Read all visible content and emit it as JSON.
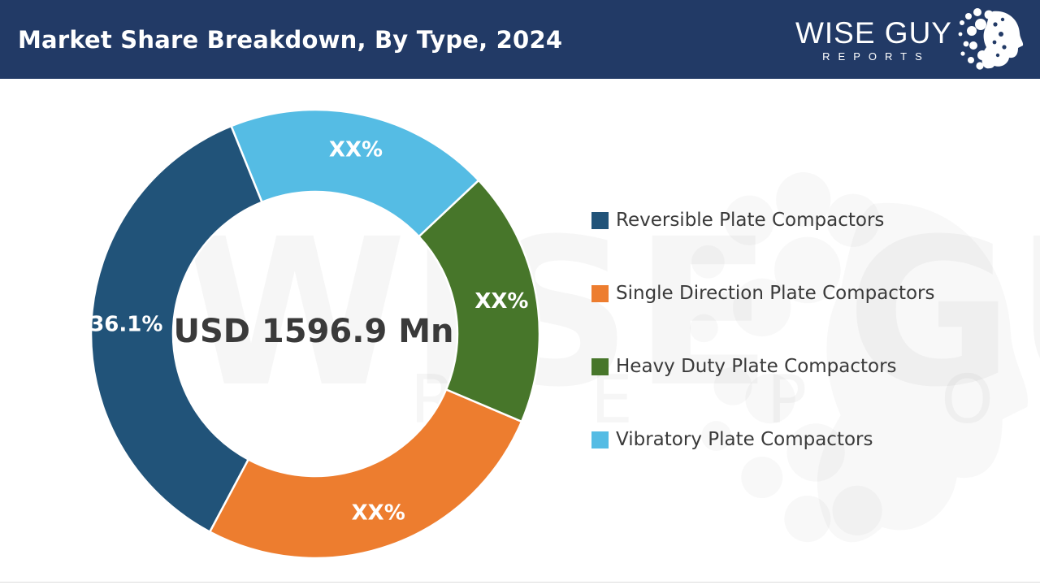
{
  "header": {
    "title": "Market Share Breakdown, By Type, 2024",
    "brand": {
      "line1": "WISE GUY",
      "line2": "REPORTS"
    }
  },
  "watermark": {
    "line1": "WISE GUY",
    "line2": "REPORTS"
  },
  "colors": {
    "header_bg": "#223A66",
    "text_dark": "#3A3A3A",
    "slice_label": "#FFFFFF"
  },
  "chart_data": {
    "type": "pie",
    "subtype": "donut",
    "title": "Market Share Breakdown, By Type, 2024",
    "center_label": "USD 1596.9 Mn",
    "units": "% market share",
    "start_angle_deg": 112,
    "direction": "counterclockwise",
    "legend_position": "right",
    "segments": [
      {
        "label": "Reversible Plate Compactors",
        "value": 36.1,
        "display": "36.1%",
        "color": "#215379"
      },
      {
        "label": "Single Direction Plate Compactors",
        "value": 26.4,
        "display": "XX%",
        "color": "#ED7D2F"
      },
      {
        "label": "Heavy Duty Plate Compactors",
        "value": 18.4,
        "display": "XX%",
        "color": "#47762A"
      },
      {
        "label": "Vibratory Plate Compactors",
        "value": 19.1,
        "display": "XX%",
        "color": "#55BCE4"
      }
    ]
  }
}
